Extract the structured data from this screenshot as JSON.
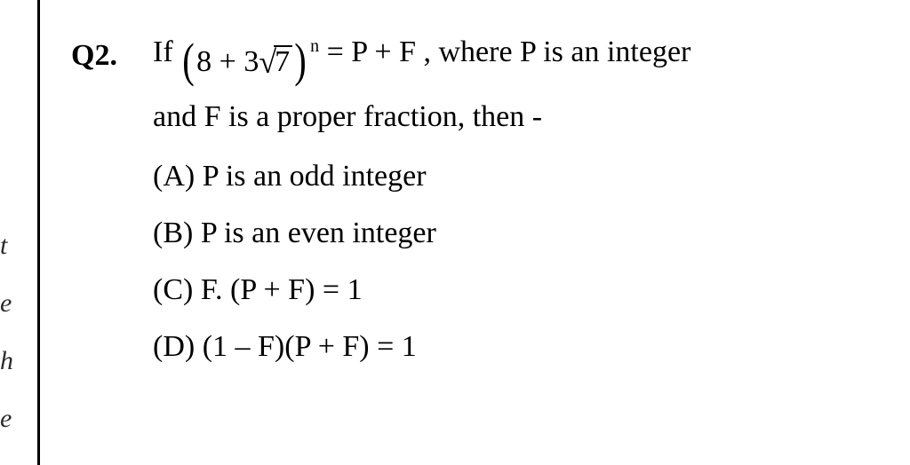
{
  "leftMargin": {
    "letters": [
      "t",
      "e",
      "h",
      "e"
    ]
  },
  "question": {
    "number": "Q2.",
    "stem_prefix": "If ",
    "expr": {
      "open": "(",
      "a": "8",
      "plus": " + ",
      "b": "3",
      "radicand": "7",
      "close": ")",
      "power": "n"
    },
    "stem_mid": " = P + F , where P is an integer",
    "stem_line2": "and F is a proper fraction, then -"
  },
  "options": {
    "A": {
      "label": "(A)",
      "text": " P is an odd integer"
    },
    "B": {
      "label": "(B)",
      "text": " P is an even integer"
    },
    "C": {
      "label": "(C)",
      "text": " F. (P + F) = 1"
    },
    "D": {
      "label": "(D)",
      "text": " (1 – F)(P + F) = 1"
    }
  },
  "style": {
    "text_color": "#000000",
    "background": "#ffffff",
    "rule_color": "#000000",
    "font_family": "Times New Roman"
  }
}
